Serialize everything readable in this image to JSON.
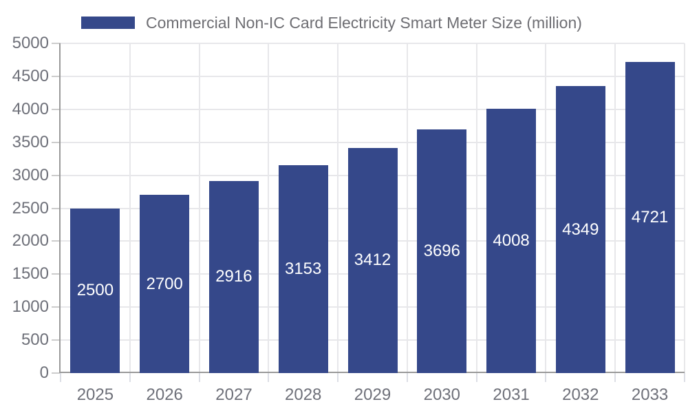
{
  "legend": {
    "label": "Commercial Non-IC Card Electricity Smart Meter Size (million)"
  },
  "colors": {
    "bar": "#35488a",
    "axis_line": "#999999",
    "grid_line": "#e7e7ea",
    "y_tick_line": "#cccccc",
    "x_tick_line": "#dcdee5",
    "axis_label_text": "#6e7079",
    "legend_text": "#6e6e73",
    "bar_label_text": "#ffffff",
    "background": "#ffffff"
  },
  "chart_data": {
    "type": "bar",
    "title": "Commercial Non-IC Card Electricity Smart Meter Size (million)",
    "series_name": "Commercial Non-IC Card Electricity Smart Meter Size (million)",
    "categories": [
      "2025",
      "2026",
      "2027",
      "2028",
      "2029",
      "2030",
      "2031",
      "2032",
      "2033"
    ],
    "values": [
      2500,
      2700,
      2916,
      3153,
      3412,
      3696,
      4008,
      4349,
      4721
    ],
    "xlabel": "",
    "ylabel": "",
    "ylim": [
      0,
      5000
    ],
    "ytick_step": 500,
    "yticks": [
      0,
      500,
      1000,
      1500,
      2000,
      2500,
      3000,
      3500,
      4000,
      4500,
      5000
    ],
    "grid": true,
    "legend_position": "top-left",
    "bar_label_position": "inside-center"
  }
}
